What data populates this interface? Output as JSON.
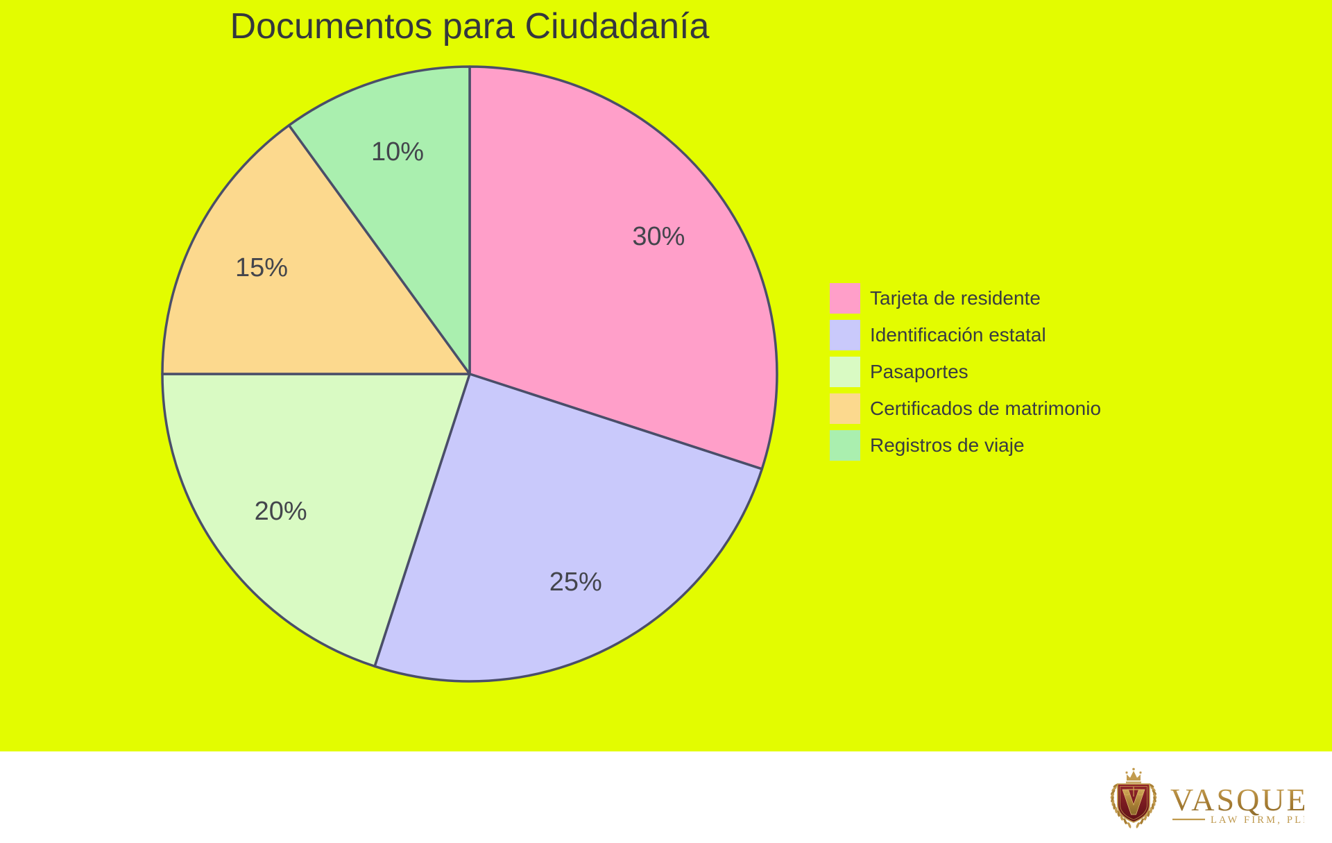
{
  "chart_data": {
    "type": "pie",
    "title": "Documentos para Ciudadanía",
    "categories": [
      "Tarjeta de residente",
      "Identificación estatal",
      "Pasaportes",
      "Certificados de matrimonio",
      "Registros de viaje"
    ],
    "values": [
      30,
      25,
      20,
      15,
      10
    ],
    "labels": [
      "30%",
      "25%",
      "20%",
      "15%",
      "10%"
    ],
    "colors": [
      "#FF9FC9",
      "#C9C9FB",
      "#D9FAC3",
      "#FCD98E",
      "#AAEFAF"
    ],
    "start_angle_deg": 0,
    "direction": "clockwise",
    "legend_position": "right",
    "background": "#E3FC00",
    "slice_stroke": "#4A4E69",
    "label_color": "#43454C"
  },
  "footer": {
    "brand": "VASQUEZ",
    "sub": "LAW FIRM, PLLC"
  }
}
